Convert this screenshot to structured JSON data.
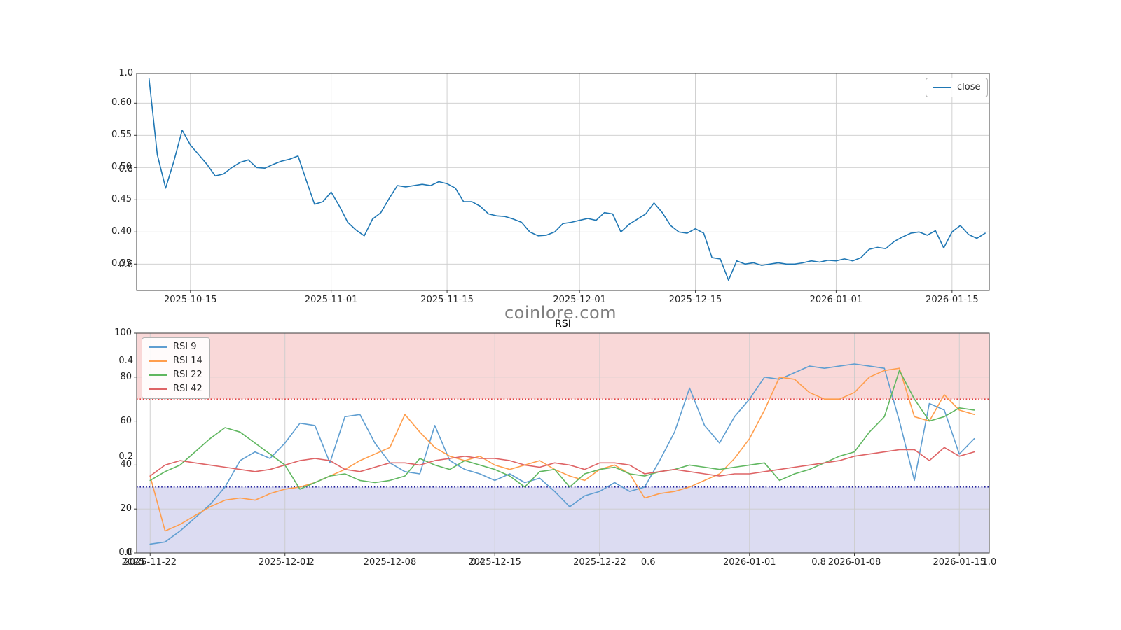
{
  "watermark": "coinlore.com",
  "figure_axis_artifact": {
    "tick_labels": [
      "0.0",
      "0.2",
      "0.4",
      "0.6",
      "0.8",
      "1.0"
    ],
    "year_label": "2025"
  },
  "chart_data": [
    {
      "type": "line",
      "title": "",
      "grid": true,
      "legend_position": "upper right",
      "xlim": [
        -1.5,
        101.5
      ],
      "ylim": [
        0.309,
        0.646
      ],
      "y_ticks": [
        0.35,
        0.4,
        0.45,
        0.5,
        0.55,
        0.6
      ],
      "y_tick_labels": [
        "0.35",
        "0.40",
        "0.45",
        "0.50",
        "0.55",
        "0.60"
      ],
      "x_tick_labels": [
        "2025-10-15",
        "2025-11-01",
        "2025-11-15",
        "2025-12-01",
        "2025-12-15",
        "2026-01-01",
        "2026-01-15"
      ],
      "x_tick_indices": [
        5,
        22,
        36,
        52,
        66,
        83,
        97
      ],
      "series": [
        {
          "name": "close",
          "color": "#1f77b4",
          "values": [
            0.638,
            0.52,
            0.468,
            0.51,
            0.558,
            0.535,
            0.52,
            0.505,
            0.487,
            0.49,
            0.5,
            0.508,
            0.512,
            0.5,
            0.499,
            0.505,
            0.51,
            0.513,
            0.518,
            0.48,
            0.443,
            0.447,
            0.462,
            0.44,
            0.415,
            0.403,
            0.394,
            0.42,
            0.43,
            0.452,
            0.472,
            0.47,
            0.472,
            0.474,
            0.472,
            0.478,
            0.475,
            0.468,
            0.447,
            0.447,
            0.44,
            0.428,
            0.425,
            0.424,
            0.42,
            0.415,
            0.4,
            0.394,
            0.395,
            0.4,
            0.413,
            0.415,
            0.418,
            0.421,
            0.418,
            0.43,
            0.428,
            0.4,
            0.412,
            0.42,
            0.428,
            0.445,
            0.43,
            0.41,
            0.4,
            0.398,
            0.405,
            0.398,
            0.36,
            0.358,
            0.325,
            0.355,
            0.35,
            0.352,
            0.348,
            0.35,
            0.352,
            0.35,
            0.35,
            0.352,
            0.355,
            0.353,
            0.356,
            0.355,
            0.358,
            0.355,
            0.36,
            0.373,
            0.376,
            0.374,
            0.385,
            0.392,
            0.398,
            0.4,
            0.395,
            0.402,
            0.375,
            0.4,
            0.41,
            0.396,
            0.39,
            0.398
          ]
        }
      ]
    },
    {
      "type": "line",
      "title": "RSI",
      "grid": true,
      "legend_position": "upper left",
      "xlim": [
        -0.9,
        56
      ],
      "ylim": [
        0,
        100
      ],
      "y_ticks": [
        0,
        20,
        40,
        60,
        80,
        100
      ],
      "y_tick_labels": [
        "0",
        "20",
        "40",
        "60",
        "80",
        "100"
      ],
      "x_tick_labels": [
        "2025-11-22",
        "2025-12-01",
        "2025-12-08",
        "2025-12-15",
        "2025-12-22",
        "2026-01-01",
        "2026-01-08",
        "2026-01-15"
      ],
      "x_tick_indices": [
        0,
        9,
        16,
        23,
        30,
        40,
        47,
        54
      ],
      "bands": [
        {
          "from": 70,
          "to": 100,
          "color": "#f9d8d8"
        },
        {
          "from": 0,
          "to": 30,
          "color": "#dcdcf2"
        }
      ],
      "hlines": [
        {
          "y": 70,
          "color": "#dd2222"
        },
        {
          "y": 30,
          "color": "#00008b"
        }
      ],
      "series": [
        {
          "name": "RSI 9",
          "color": "#5f9ed1",
          "values": [
            4,
            5,
            10,
            16,
            22,
            30,
            42,
            46,
            43,
            50,
            59,
            58,
            41,
            62,
            63,
            50,
            41,
            37,
            36,
            58,
            42,
            38,
            36,
            33,
            36,
            32,
            34,
            28,
            21,
            26,
            28,
            32,
            28,
            30,
            42,
            55,
            75,
            58,
            50,
            62,
            70,
            80,
            79,
            82,
            85,
            84,
            85,
            86,
            85,
            84,
            60,
            33,
            68,
            65,
            45,
            52
          ]
        },
        {
          "name": "RSI 14",
          "color": "#ff9e4d",
          "values": [
            35,
            10,
            13,
            17,
            21,
            24,
            25,
            24,
            27,
            29,
            30,
            32,
            35,
            38,
            42,
            45,
            48,
            63,
            55,
            48,
            44,
            42,
            44,
            40,
            38,
            40,
            42,
            38,
            35,
            33,
            38,
            40,
            36,
            25,
            27,
            28,
            30,
            33,
            36,
            43,
            52,
            65,
            80,
            79,
            73,
            70,
            70,
            73,
            80,
            83,
            84,
            62,
            60,
            72,
            65,
            63
          ]
        },
        {
          "name": "RSI 22",
          "color": "#60b760",
          "values": [
            33,
            37,
            40,
            46,
            52,
            57,
            55,
            50,
            45,
            40,
            29,
            32,
            35,
            36,
            33,
            32,
            33,
            35,
            43,
            40,
            38,
            42,
            40,
            38,
            35,
            30,
            37,
            38,
            30,
            36,
            38,
            39,
            36,
            35,
            37,
            38,
            40,
            39,
            38,
            39,
            40,
            41,
            33,
            36,
            38,
            41,
            44,
            46,
            55,
            62,
            83,
            70,
            60,
            62,
            66,
            65
          ]
        },
        {
          "name": "RSI 42",
          "color": "#de6365",
          "values": [
            35,
            40,
            42,
            41,
            40,
            39,
            38,
            37,
            38,
            40,
            42,
            43,
            42,
            38,
            37,
            39,
            41,
            41,
            40,
            42,
            43,
            44,
            43,
            43,
            42,
            40,
            39,
            41,
            40,
            38,
            41,
            41,
            40,
            36,
            37,
            38,
            37,
            36,
            35,
            36,
            36,
            37,
            38,
            39,
            40,
            41,
            42,
            44,
            45,
            46,
            47,
            47,
            42,
            48,
            44,
            46
          ]
        }
      ]
    }
  ]
}
